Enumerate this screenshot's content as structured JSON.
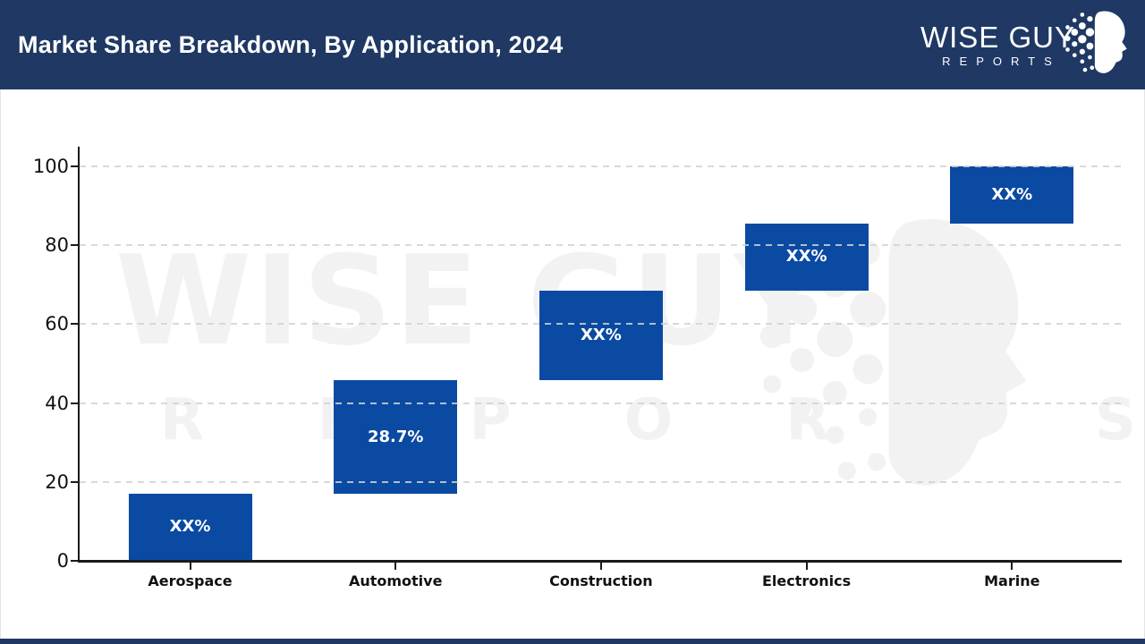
{
  "header": {
    "title": "Market Share Breakdown, By Application, 2024",
    "logo": {
      "line1": "WISE GUY",
      "line2": "REPORTS"
    }
  },
  "watermark": {
    "line1": "WISE GUY",
    "line2": "R E P O R T S"
  },
  "colors": {
    "header_bg": "#1f3864",
    "bar": "#0b4aa2",
    "grid": "#d2d2d2",
    "axis": "#1a1a1a",
    "bar_label": "#ffffff",
    "watermark": "#f2f2f2"
  },
  "chart_data": {
    "type": "bar",
    "subtype": "waterfall",
    "title": "Market Share Breakdown, By Application, 2024",
    "categories": [
      "Aerospace",
      "Automotive",
      "Construction",
      "Electronics",
      "Marine"
    ],
    "segments": [
      {
        "category": "Aerospace",
        "start": 0,
        "end": 17,
        "label": "XX%"
      },
      {
        "category": "Automotive",
        "start": 17,
        "end": 45.7,
        "label": "28.7%"
      },
      {
        "category": "Construction",
        "start": 45.7,
        "end": 68.5,
        "label": "XX%"
      },
      {
        "category": "Electronics",
        "start": 68.5,
        "end": 85.4,
        "label": "XX%"
      },
      {
        "category": "Marine",
        "start": 85.4,
        "end": 100,
        "label": "XX%"
      }
    ],
    "yticks": [
      0,
      20,
      40,
      60,
      80,
      100
    ],
    "ylim": [
      0,
      105
    ],
    "xlabel": "",
    "ylabel": "",
    "grid": "horizontal-dashed",
    "legend": "none"
  }
}
